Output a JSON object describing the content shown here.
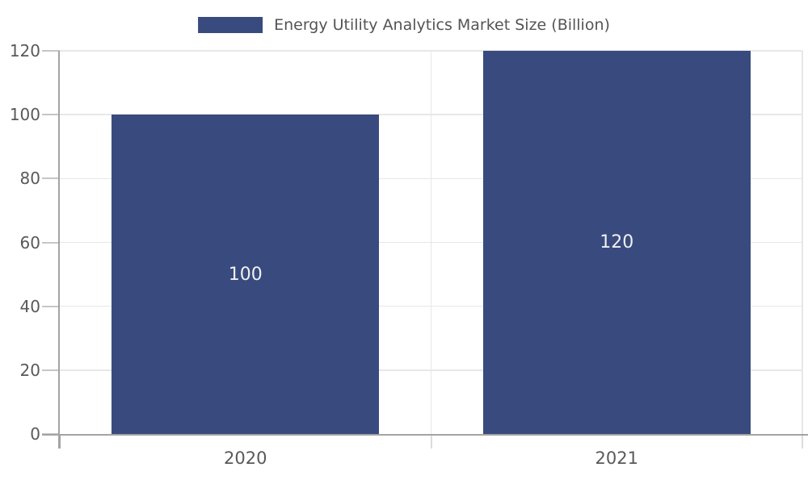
{
  "chart_data": {
    "type": "bar",
    "title": "",
    "legend_label": "Energy Utility Analytics Market Size (Billion)",
    "legend_position": "top-center",
    "categories": [
      "2020",
      "2021"
    ],
    "values": [
      100,
      120
    ],
    "bar_value_labels": [
      "100",
      "120"
    ],
    "xlabel": "",
    "ylabel": "",
    "ylim": [
      0,
      120
    ],
    "yticks": [
      0,
      20,
      40,
      60,
      80,
      100,
      120
    ],
    "grid": true,
    "colors": {
      "bar": "#394b7e",
      "grid": "#e7e7e8",
      "axis": "#a4a4a4",
      "tick": "#c6c6c6",
      "minor_tick": "#dcdcdc",
      "tick_label_text": "#595959",
      "data_label_text": "#f0f0f0",
      "legend_text": "#545454",
      "background": "#ffffff"
    }
  }
}
